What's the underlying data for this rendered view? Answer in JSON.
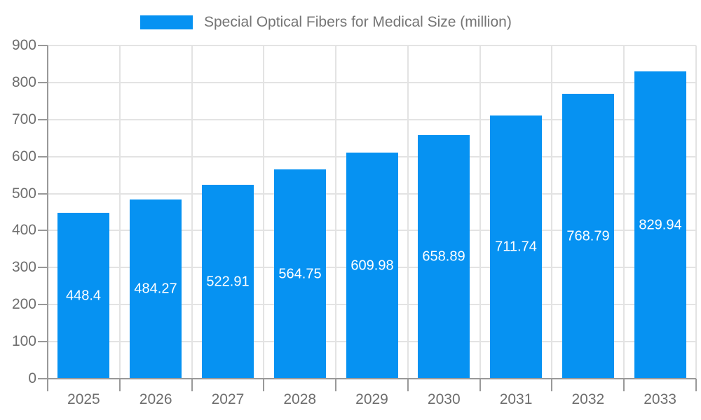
{
  "legend": {
    "label": "Special Optical Fibers for Medical Size (million)"
  },
  "colors": {
    "bar": "#0692F2",
    "grid": "#E3E3E3",
    "axis": "#999999",
    "axis_label": "#6E6E6E",
    "legend_text": "#757575",
    "bar_label": "#FFFFFF"
  },
  "chart_data": {
    "type": "bar",
    "title": "Special Optical Fibers for Medical Size (million)",
    "categories": [
      "2025",
      "2026",
      "2027",
      "2028",
      "2029",
      "2030",
      "2031",
      "2032",
      "2033"
    ],
    "values": [
      448.4,
      484.27,
      522.91,
      564.75,
      609.98,
      658.89,
      711.74,
      768.79,
      829.94
    ],
    "bar_labels": [
      "448.4",
      "484.27",
      "522.91",
      "564.75",
      "609.98",
      "658.89",
      "711.74",
      "768.79",
      "829.94"
    ],
    "y_tick_labels": [
      "0",
      "100",
      "200",
      "300",
      "400",
      "500",
      "600",
      "700",
      "800",
      "900"
    ],
    "xlabel": "",
    "ylabel": "",
    "ylim": [
      0,
      900
    ],
    "ytick_interval": 100,
    "grid": true,
    "legend_position": "top",
    "bar_label_position": "inside-center"
  }
}
